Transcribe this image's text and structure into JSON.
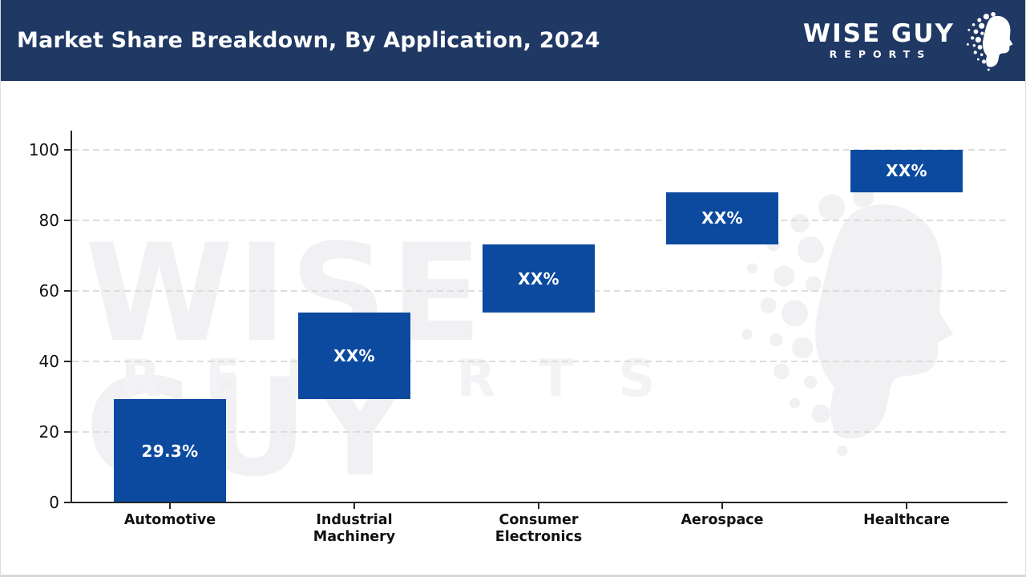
{
  "header": {
    "title": "Market Share Breakdown, By Application, 2024",
    "logo": {
      "line1": "WISE GUY",
      "line2": "REPORTS"
    }
  },
  "watermark": {
    "line1": "WISE GUY",
    "line2": "REPORTS"
  },
  "colors": {
    "header_bg": "#1f3864",
    "bar": "#0b4a9f",
    "axis": "#262626",
    "gridline": "#dddddd",
    "watermark": "#f1f1f4"
  },
  "chart_data": {
    "type": "bar",
    "subtype": "waterfall",
    "title": "Market Share Breakdown, By Application, 2024",
    "categories": [
      "Automotive",
      "Industrial\nMachinery",
      "Consumer\nElectronics",
      "Aerospace",
      "Healthcare"
    ],
    "bar_labels": [
      "29.3%",
      "XX%",
      "XX%",
      "XX%",
      "XX%"
    ],
    "segments": [
      {
        "start": 0,
        "end": 29.3
      },
      {
        "start": 29.3,
        "end": 53.8
      },
      {
        "start": 53.8,
        "end": 73.2
      },
      {
        "start": 73.2,
        "end": 88.0
      },
      {
        "start": 88.0,
        "end": 100.0
      }
    ],
    "yticks": [
      0,
      20,
      40,
      60,
      80,
      100
    ],
    "ylim": [
      0,
      105
    ],
    "xlabel": "",
    "ylabel": "",
    "legend": "none",
    "grid": "horizontal-dashed",
    "bar_color": "#0b4a9f",
    "label_color": "#ffffff",
    "known_values_note": "29.3%"
  }
}
